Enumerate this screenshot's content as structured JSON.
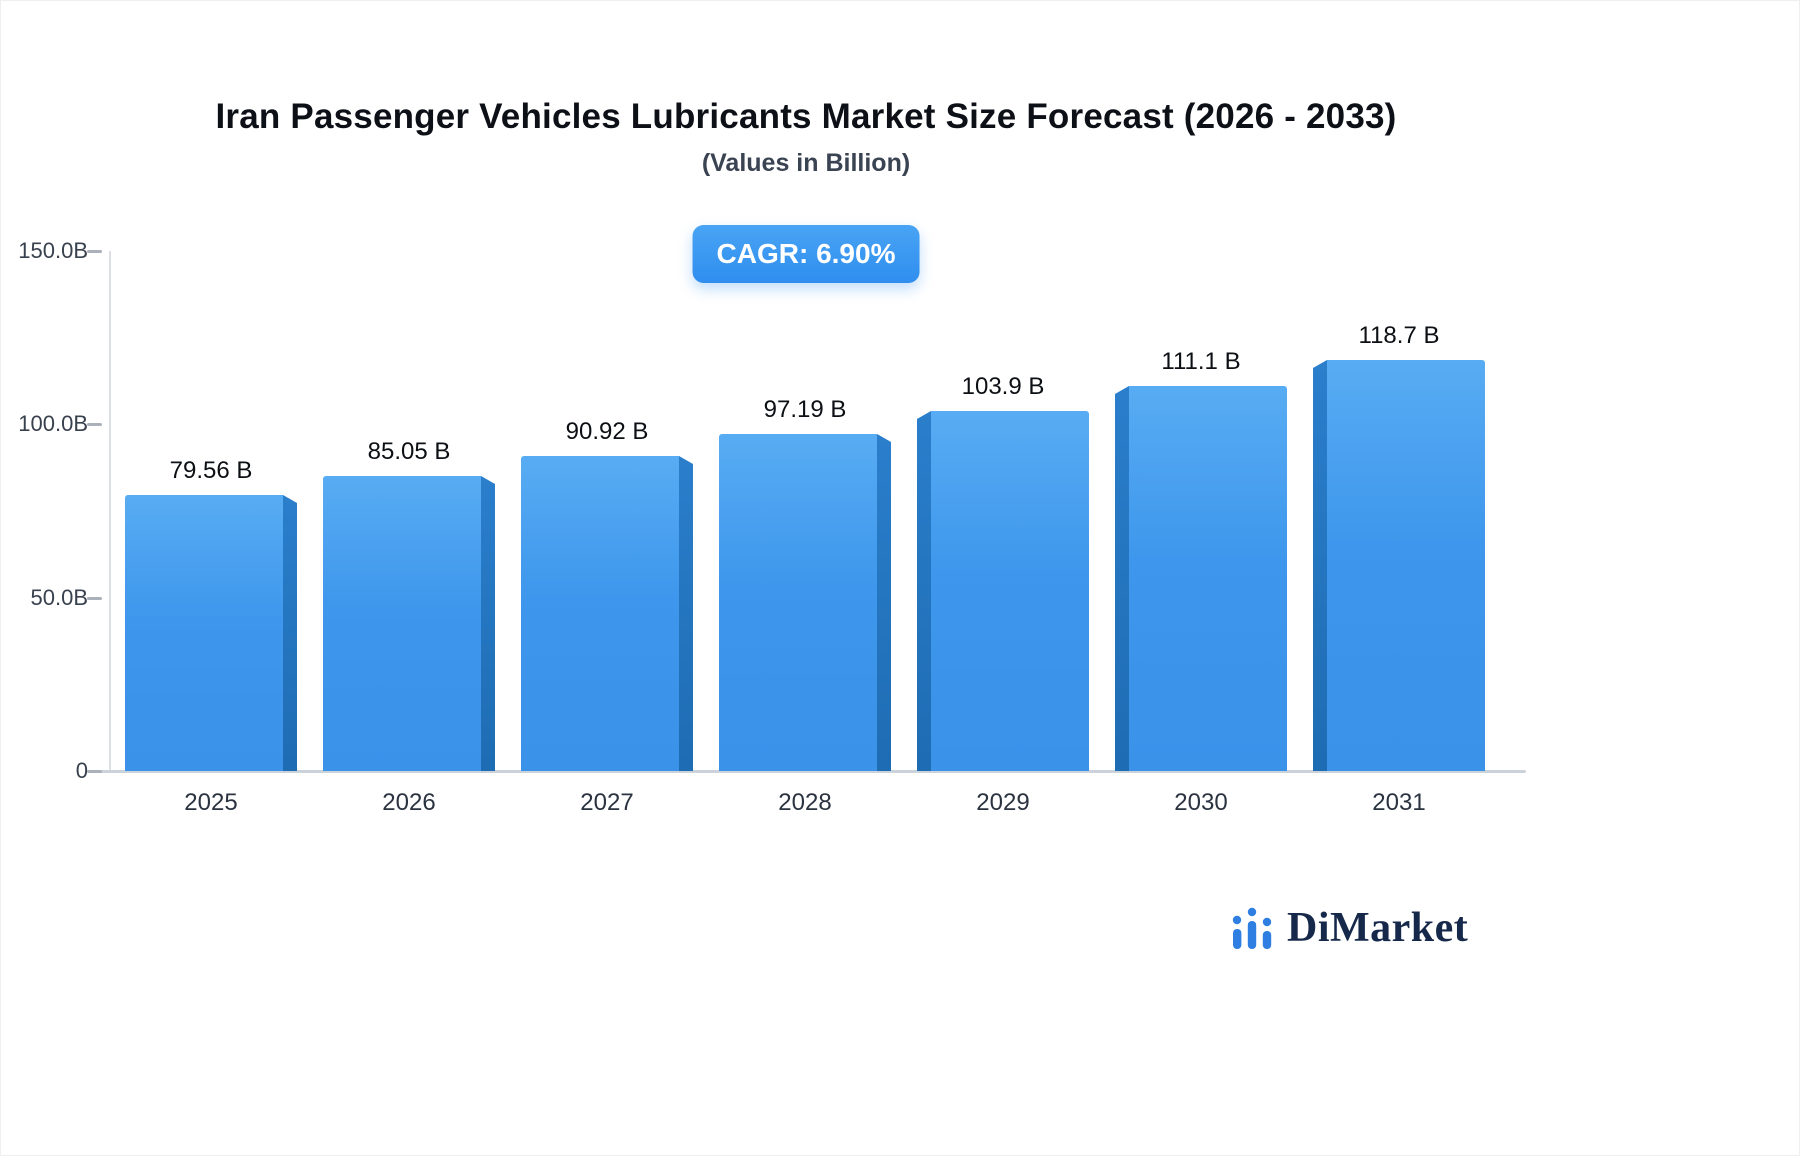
{
  "title": "Iran Passenger Vehicles Lubricants Market Size Forecast (2026 - 2033)",
  "subtitle": "(Values in Billion)",
  "cagr": {
    "label": "CAGR: 6.90%"
  },
  "chart_data": {
    "type": "bar",
    "title": "Iran Passenger Vehicles Lubricants Market Size Forecast (2026 - 2033)",
    "subtitle": "(Values in Billion)",
    "categories": [
      "2025",
      "2026",
      "2027",
      "2028",
      "2029",
      "2030",
      "2031"
    ],
    "values": [
      79.56,
      85.05,
      90.92,
      97.19,
      103.9,
      111.1,
      118.7
    ],
    "labels": [
      "79.56 B",
      "85.05 B",
      "90.92 B",
      "97.19 B",
      "103.9 B",
      "111.1 B",
      "118.7 B"
    ],
    "ylim": [
      0,
      150
    ],
    "y_ticks": [
      {
        "label": "150.0B",
        "value": 150
      },
      {
        "label": "100.0B",
        "value": 100
      },
      {
        "label": "50.0B",
        "value": 50
      },
      {
        "label": "0",
        "value": 0
      }
    ],
    "xlabel": "",
    "ylabel": "",
    "grid": "off",
    "legend": "none",
    "bar_color": "#3e97ec",
    "bar_side_color": "#1e6cb3",
    "shade_side": [
      "right",
      "right",
      "right",
      "right",
      "left",
      "left",
      "left"
    ]
  },
  "logo": {
    "text": "DiMarket",
    "text_color": "#16294b",
    "accent_color": "#2e7fe1"
  }
}
